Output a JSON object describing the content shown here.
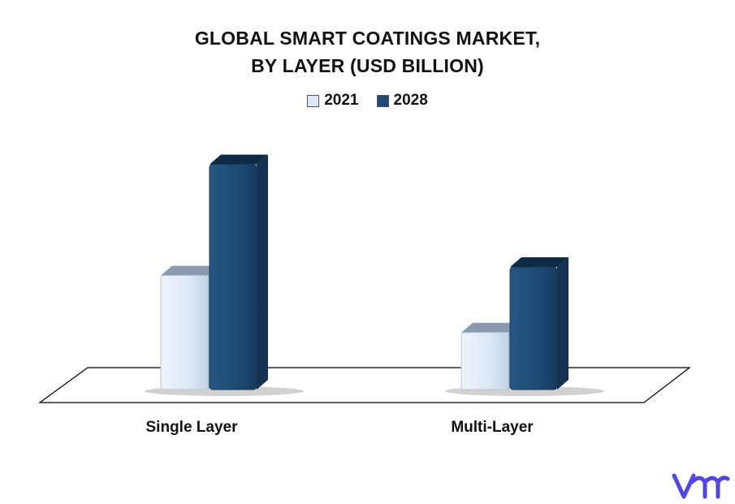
{
  "chart_data": {
    "type": "bar",
    "title": [
      "GLOBAL SMART COATINGS MARKET,",
      "BY LAYER (USD BILLION)"
    ],
    "categories": [
      "Single Layer",
      "Multi-Layer"
    ],
    "series": [
      {
        "name": "2021",
        "color": "#dce8f5",
        "values": [
          2.0,
          1.0
        ]
      },
      {
        "name": "2028",
        "color": "#1e4a75",
        "values": [
          3.95,
          2.15
        ]
      }
    ],
    "ylim": [
      0,
      4.2
    ],
    "legend_position": "top-center",
    "grid": false
  },
  "logo": {
    "name": "vmr-logo",
    "color": "#4f46e5"
  }
}
